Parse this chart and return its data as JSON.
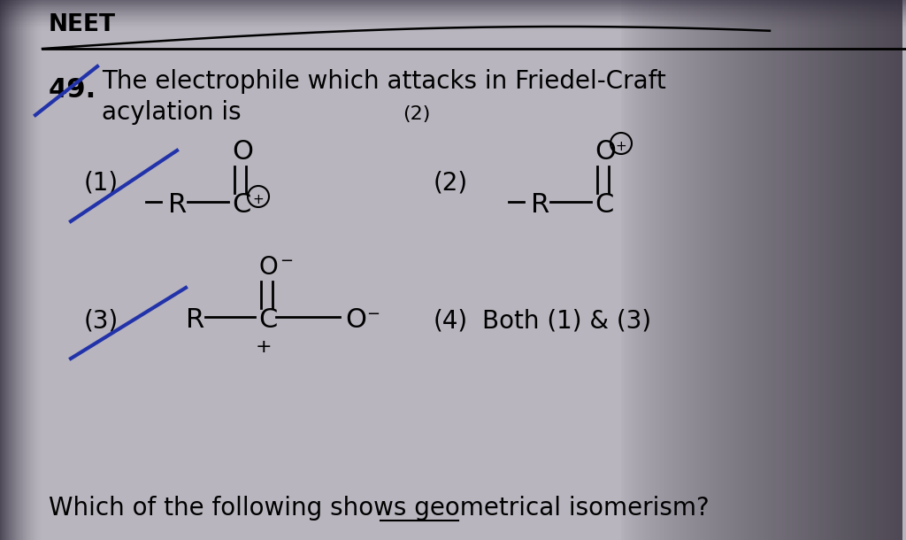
{
  "bg_left_color": "#b8b5be",
  "bg_right_color": "#6a6570",
  "paper_color": "#dddae0",
  "title": "NEET",
  "question_num": "49.",
  "question_line1": "The electrophile which attacks in Friedel-Craft",
  "question_line2": "acylation is",
  "opt1_label": "(1)",
  "opt2_label": "(2)",
  "opt3_label": "(3)",
  "opt4_label": "(4)",
  "opt4_text": "Both (1) & (3)",
  "bottom_text": "Which of the following shows geometrical isomerism?"
}
